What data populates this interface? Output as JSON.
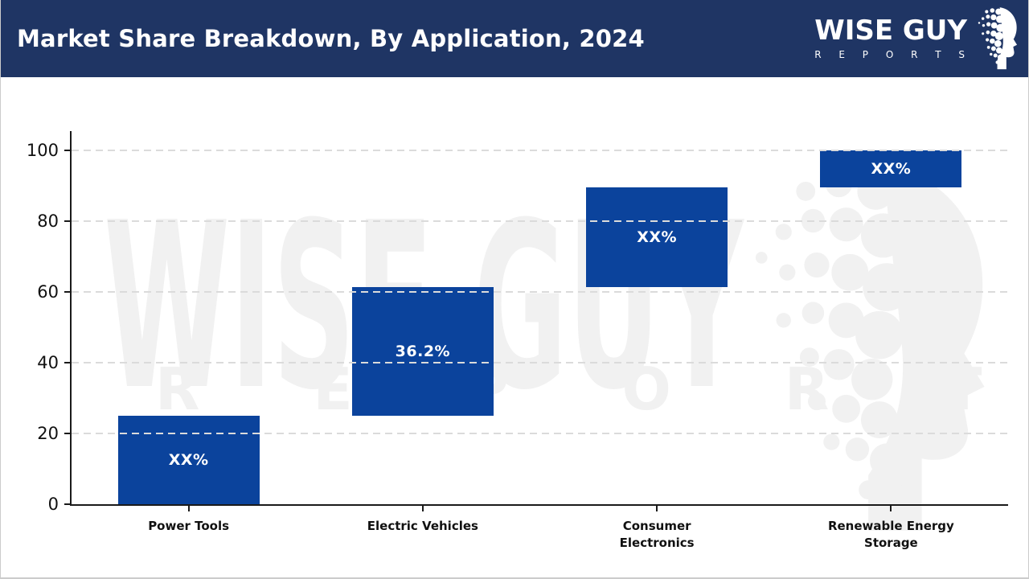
{
  "header": {
    "title": "Market Share Breakdown, By Application, 2024",
    "logo_line1": "WISE GUY",
    "logo_line2": "R E P O R T S"
  },
  "watermark": {
    "line1": "WISE GUY",
    "line2": "R E P O R T S"
  },
  "colors": {
    "header_bg": "#1f3564",
    "bar": "#0b439c",
    "bar_label": "#ffffff",
    "gridline": "#dbdbdb",
    "axis": "#1a1a1a",
    "watermark": "#f1f1f1",
    "frame_border": "#cccccc"
  },
  "chart_data": {
    "type": "bar",
    "subtype": "floating-segment-breakdown",
    "title": "Market Share Breakdown, By Application, 2024",
    "categories": [
      "Power Tools",
      "Electric Vehicles",
      "Consumer Electronics",
      "Renewable Energy Storage"
    ],
    "segments": [
      {
        "category": "Power Tools",
        "category_lines": [
          "Power Tools"
        ],
        "start": 0,
        "end": 25,
        "label": "XX%"
      },
      {
        "category": "Electric Vehicles",
        "category_lines": [
          "Electric Vehicles"
        ],
        "start": 25,
        "end": 61.2,
        "value": 36.2,
        "label": "36.2%"
      },
      {
        "category": "Consumer Electronics",
        "category_lines": [
          "Consumer",
          "Electronics"
        ],
        "start": 61.2,
        "end": 89.4,
        "label": "XX%"
      },
      {
        "category": "Renewable Energy Storage",
        "category_lines": [
          "Renewable Energy",
          "Storage"
        ],
        "start": 89.4,
        "end": 100,
        "label": "XX%"
      }
    ],
    "xlabel": "",
    "ylabel": "",
    "ylim": [
      0,
      100
    ],
    "yticks": [
      0,
      20,
      40,
      60,
      80,
      100
    ],
    "grid": "dashed-horizontal",
    "gridlines_over_bars": true,
    "legend": "none",
    "bar_color": "#0b439c",
    "bar_label_color": "#ffffff"
  }
}
